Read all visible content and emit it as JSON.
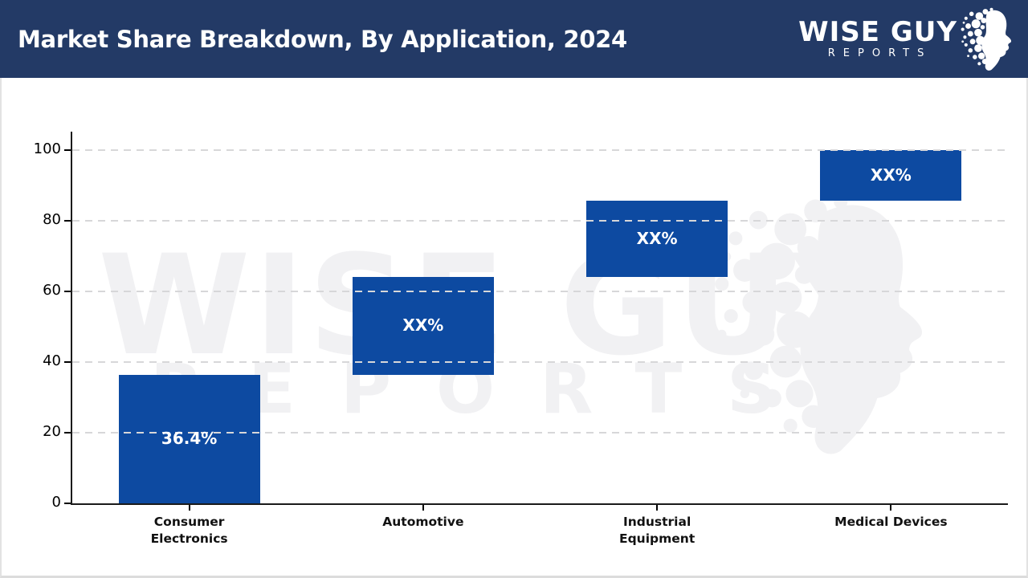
{
  "header": {
    "title": "Market Share Breakdown, By Application, 2024",
    "logo": {
      "line1": "WISE GUY",
      "line2": "REPORTS"
    }
  },
  "watermark": {
    "line1": "WISE GUY",
    "line2": "REPORTS"
  },
  "colors": {
    "header_bg": "#233a66",
    "bar": "#0d4aa1",
    "grid": "#d7d7d9",
    "axis": "#1a1a1a",
    "watermark": "#f1f1f3",
    "bar_label": "#ffffff"
  },
  "chart_data": {
    "type": "bar",
    "subtype": "waterfall",
    "title": "Market Share Breakdown, By Application, 2024",
    "categories": [
      "Consumer Electronics",
      "Automotive",
      "Industrial Equipment",
      "Medical Devices"
    ],
    "category_lines": [
      [
        "Consumer",
        "Electronics"
      ],
      [
        "Automotive"
      ],
      [
        "Industrial",
        "Equipment"
      ],
      [
        "Medical Devices"
      ]
    ],
    "segments": [
      {
        "category": "Consumer Electronics",
        "start": 0,
        "end": 36.4,
        "label": "36.4%"
      },
      {
        "category": "Automotive",
        "start": 36.4,
        "end": 64,
        "label": "XX%"
      },
      {
        "category": "Industrial Equipment",
        "start": 64,
        "end": 85.5,
        "label": "XX%"
      },
      {
        "category": "Medical Devices",
        "start": 85.5,
        "end": 100,
        "label": "XX%"
      }
    ],
    "y_ticks": [
      0,
      20,
      40,
      60,
      80,
      100
    ],
    "ylim": [
      0,
      105
    ],
    "xlabel": "",
    "ylabel": "",
    "grid": "horizontal-dashed",
    "legend": "none"
  }
}
